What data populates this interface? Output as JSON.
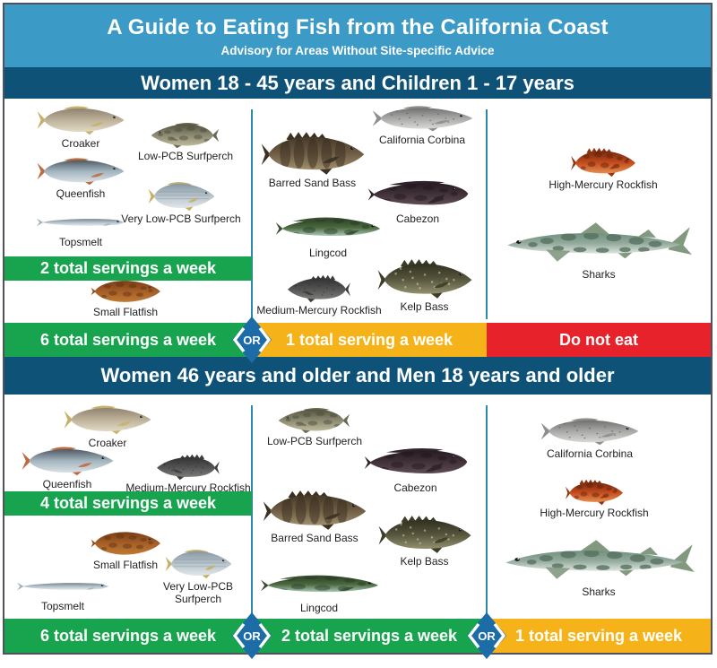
{
  "poster": {
    "title": "A Guide to Eating Fish from the California Coast",
    "subtitle": "Advisory for Areas Without Site-specific Advice",
    "or_label": "OR"
  },
  "colors": {
    "header_bg": "#3b9ac6",
    "section_heading_bg": "#0f5278",
    "serving_green": "#18a44f",
    "serving_orange": "#f6b219",
    "do_not_eat_red": "#e8222a",
    "or_badge_blue": "#1c6ca7",
    "divider_teal": "#2d89a8",
    "outer_border": "#52525e"
  },
  "sections": [
    {
      "heading": "Women 18 - 45 years and Children 1 - 17 years",
      "col1": {
        "fish": [
          {
            "label": "Croaker",
            "art": "croaker"
          },
          {
            "label": "Low-PCB Surfperch",
            "art": "lowpcb_surfperch"
          },
          {
            "label": "Queenfish",
            "art": "queenfish"
          },
          {
            "label": "Very Low-PCB Surfperch",
            "art": "verylow_surfperch"
          },
          {
            "label": "Topsmelt",
            "art": "topsmelt"
          }
        ],
        "banner": "2 total servings a week",
        "fish2": [
          {
            "label": "Small Flatfish",
            "art": "small_flatfish"
          }
        ],
        "bottom_banner": "6 total servings a week"
      },
      "col2": {
        "fish": [
          {
            "label": "California Corbina",
            "art": "corbina"
          },
          {
            "label": "Barred Sand Bass",
            "art": "barred_sand_bass"
          },
          {
            "label": "Cabezon",
            "art": "cabezon"
          },
          {
            "label": "Lingcod",
            "art": "lingcod"
          },
          {
            "label": "Medium-Mercury Rockfish",
            "art": "medium_rockfish"
          },
          {
            "label": "Kelp Bass",
            "art": "kelp_bass"
          }
        ],
        "bottom_banner": "1 total serving a week"
      },
      "col3": {
        "fish": [
          {
            "label": "High-Mercury Rockfish",
            "art": "high_rockfish"
          },
          {
            "label": "Sharks",
            "art": "sharks"
          }
        ],
        "bottom_banner": "Do not eat"
      }
    },
    {
      "heading": "Women 46 years and older and Men 18 years and older",
      "col1": {
        "fish": [
          {
            "label": "Croaker",
            "art": "croaker"
          },
          {
            "label": "Queenfish",
            "art": "queenfish"
          },
          {
            "label": "Medium-Mercury Rockfish",
            "art": "medium_rockfish"
          }
        ],
        "banner": "4 total servings a week",
        "fish2": [
          {
            "label": "Small Flatfish",
            "art": "small_flatfish"
          },
          {
            "label": "Topsmelt",
            "art": "topsmelt"
          },
          {
            "label": "Very Low-PCB Surfperch",
            "art": "verylow_surfperch"
          }
        ],
        "bottom_banner": "6 total servings a week"
      },
      "col2": {
        "fish": [
          {
            "label": "Low-PCB Surfperch",
            "art": "lowpcb_surfperch"
          },
          {
            "label": "Cabezon",
            "art": "cabezon"
          },
          {
            "label": "Barred Sand Bass",
            "art": "barred_sand_bass"
          },
          {
            "label": "Kelp Bass",
            "art": "kelp_bass"
          },
          {
            "label": "Lingcod",
            "art": "lingcod"
          }
        ],
        "bottom_banner": "2 total servings a week"
      },
      "col3": {
        "fish": [
          {
            "label": "California Corbina",
            "art": "corbina"
          },
          {
            "label": "High-Mercury Rockfish",
            "art": "high_rockfish"
          },
          {
            "label": "Sharks",
            "art": "sharks"
          }
        ],
        "bottom_banner": "1 total serving a week"
      }
    }
  ],
  "fish_styles": {
    "croaker": {
      "type": "fusiform",
      "back": "#8f8270",
      "body": "#beb29a",
      "belly": "#e2dac6",
      "fins": "#c7b06a",
      "pattern": "none",
      "flip": false
    },
    "queenfish": {
      "type": "fusiform",
      "back": "#4e5a64",
      "body": "#a3b5bf",
      "belly": "#d8e0e4",
      "fins": "#bf6a3e",
      "pattern": "none",
      "flip": false
    },
    "corbina": {
      "type": "fusiform",
      "back": "#70706e",
      "body": "#a9a9a7",
      "belly": "#d8d8d4",
      "fins": "#8e8e8c",
      "pattern": "speckle",
      "spot": "#5a5a58",
      "flip": false
    },
    "lowpcb_surfperch": {
      "type": "perch",
      "back": "#53523e",
      "body": "#8b8970",
      "belly": "#bcb99c",
      "fins": "#6b6952",
      "pattern": "mottle",
      "spot": "#4a493a",
      "flip": true
    },
    "verylow_surfperch": {
      "type": "perch",
      "back": "#8798a3",
      "body": "#b7c3cb",
      "belly": "#e2e7ea",
      "fins": "#c9ae62",
      "pattern": "stripes",
      "spot": "#8b99a2",
      "flip": false
    },
    "topsmelt": {
      "type": "slender",
      "back": "#74878f",
      "body": "#b3c1c8",
      "belly": "#e6eaec",
      "fins": "#a3b2b8",
      "pattern": "none",
      "flip": false
    },
    "small_flatfish": {
      "type": "flatfish",
      "back": "#7a3e15",
      "body": "#a65f28",
      "belly": "#bf7a33",
      "fins": "#8c4c1d",
      "pattern": "mottle",
      "spot": "#5f2f10",
      "flip": false
    },
    "barred_sand_bass": {
      "type": "bass",
      "back": "#453828",
      "body": "#6e5c44",
      "belly": "#a08e6e",
      "fins": "#3c3021",
      "pattern": "bars",
      "spot": "#382d1e",
      "flip": false
    },
    "cabezon": {
      "type": "sculpin",
      "back": "#271c23",
      "body": "#413139",
      "belly": "#5f4c55",
      "fins": "#2f242b",
      "pattern": "mottle",
      "spot": "#1f161b",
      "flip": false
    },
    "lingcod": {
      "type": "lingcod",
      "back": "#2e4429",
      "body": "#4b683f",
      "belly": "#a9c8b6",
      "fins": "#374f2f",
      "pattern": "mottle",
      "spot": "#243a20",
      "flip": false
    },
    "medium_rockfish": {
      "type": "bass",
      "back": "#323232",
      "body": "#525252",
      "belly": "#7b7b77",
      "fins": "#3c3c3c",
      "pattern": "speckle",
      "spot": "#262626",
      "flip": true
    },
    "kelp_bass": {
      "type": "bass",
      "back": "#30301f",
      "body": "#55543c",
      "belly": "#92906f",
      "fins": "#3d3c27",
      "pattern": "spots_light",
      "spot": "#c9c7a0",
      "flip": false
    },
    "high_rockfish": {
      "type": "bass",
      "back": "#73290e",
      "body": "#c24a1d",
      "belly": "#e58d4f",
      "fins": "#8e3512",
      "pattern": "mottle",
      "spot": "#5e2009",
      "flip": false
    },
    "sharks": {
      "type": "shark",
      "back": "#71907f",
      "body": "#93aa9c",
      "belly": "#dce4de",
      "fins": "#82997f",
      "pattern": "leopard",
      "spot": "#57705f",
      "flip": false
    }
  }
}
